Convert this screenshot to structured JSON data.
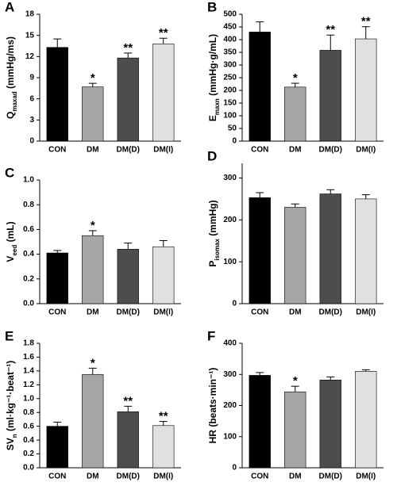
{
  "chart_data": [
    {
      "type": "bar",
      "panel_label": "A",
      "ylabel": [
        {
          "text": "Q"
        },
        {
          "text": "maxad",
          "sub": true
        },
        {
          "text": " (mmHg/ms)"
        }
      ],
      "categories": [
        "CON",
        "DM",
        "DM(D)",
        "DM(I)"
      ],
      "values": [
        13.3,
        7.7,
        11.8,
        13.8
      ],
      "errors": [
        1.2,
        0.5,
        0.7,
        0.8
      ],
      "annotations": [
        null,
        "*",
        "**",
        "**"
      ],
      "colors": [
        "#000000",
        "#a6a6a6",
        "#4d4d4d",
        "#e0e0e0"
      ],
      "ylim": [
        0,
        18
      ],
      "yticks": [
        0,
        3,
        6,
        9,
        12,
        15,
        18
      ]
    },
    {
      "type": "bar",
      "panel_label": "B",
      "ylabel": [
        {
          "text": "E"
        },
        {
          "text": "maxn",
          "sub": true
        },
        {
          "text": " (mmHg·g/mL)"
        }
      ],
      "categories": [
        "CON",
        "DM",
        "DM(D)",
        "DM(I)"
      ],
      "values": [
        430,
        213,
        358,
        403
      ],
      "errors": [
        40,
        15,
        60,
        48
      ],
      "annotations": [
        null,
        "*",
        "**",
        "**"
      ],
      "colors": [
        "#000000",
        "#a6a6a6",
        "#4d4d4d",
        "#e0e0e0"
      ],
      "ylim": [
        0,
        500
      ],
      "yticks": [
        0,
        50,
        100,
        150,
        200,
        250,
        300,
        350,
        400,
        450,
        500
      ]
    },
    {
      "type": "bar",
      "panel_label": "C",
      "ylabel": [
        {
          "text": "V"
        },
        {
          "text": "eed",
          "sub": true
        },
        {
          "text": " (mL)"
        }
      ],
      "categories": [
        "CON",
        "DM",
        "DM(D)",
        "DM(I)"
      ],
      "values": [
        0.41,
        0.55,
        0.44,
        0.46
      ],
      "errors": [
        0.02,
        0.04,
        0.05,
        0.05
      ],
      "annotations": [
        null,
        "*",
        null,
        null
      ],
      "colors": [
        "#000000",
        "#a6a6a6",
        "#4d4d4d",
        "#e0e0e0"
      ],
      "ylim": [
        0,
        1
      ],
      "yticks": [
        {
          "value": 0,
          "label": "0.0"
        },
        0.2,
        0.4,
        0.6,
        0.8,
        {
          "value": 1,
          "label": "1.0"
        }
      ]
    },
    {
      "type": "bar",
      "panel_label": "D",
      "ylabel": [
        {
          "text": "P"
        },
        {
          "text": "isomax",
          "sub": true
        },
        {
          "text": " (mmHg)"
        }
      ],
      "categories": [
        "CON",
        "DM",
        "DM(D)",
        "DM(I)"
      ],
      "values": [
        253,
        230,
        262,
        250
      ],
      "errors": [
        12,
        8,
        10,
        10
      ],
      "annotations": [
        null,
        null,
        null,
        null
      ],
      "colors": [
        "#000000",
        "#a6a6a6",
        "#4d4d4d",
        "#e0e0e0"
      ],
      "ylim": [
        0,
        335
      ],
      "yticks": [
        0,
        100,
        200,
        300
      ]
    },
    {
      "type": "bar",
      "panel_label": "E",
      "ylabel": [
        {
          "text": "SV"
        },
        {
          "text": "n",
          "sub": true
        },
        {
          "text": " (ml·kg⁻¹·beat⁻¹)"
        }
      ],
      "categories": [
        "CON",
        "DM",
        "DM(D)",
        "DM(I)"
      ],
      "values": [
        0.6,
        1.35,
        0.81,
        0.61
      ],
      "errors": [
        0.06,
        0.09,
        0.08,
        0.06
      ],
      "annotations": [
        null,
        "*",
        "**",
        "**"
      ],
      "colors": [
        "#000000",
        "#a6a6a6",
        "#4d4d4d",
        "#e0e0e0"
      ],
      "ylim": [
        0,
        1.8
      ],
      "yticks": [
        {
          "value": 0,
          "label": "0.0"
        },
        0.2,
        0.4,
        0.6,
        0.8,
        {
          "value": 1,
          "label": "1.0"
        },
        1.2,
        1.4,
        1.6,
        1.8
      ]
    },
    {
      "type": "bar",
      "panel_label": "F",
      "ylabel": [
        {
          "text": "HR (beats·min⁻¹)"
        }
      ],
      "categories": [
        "CON",
        "DM",
        "DM(D)",
        "DM(I)"
      ],
      "values": [
        297,
        244,
        282,
        310
      ],
      "errors": [
        9,
        18,
        10,
        5
      ],
      "annotations": [
        null,
        "*",
        null,
        null
      ],
      "colors": [
        "#000000",
        "#a6a6a6",
        "#4d4d4d",
        "#e0e0e0"
      ],
      "ylim": [
        0,
        400
      ],
      "yticks": [
        0,
        100,
        200,
        300,
        400
      ]
    }
  ]
}
